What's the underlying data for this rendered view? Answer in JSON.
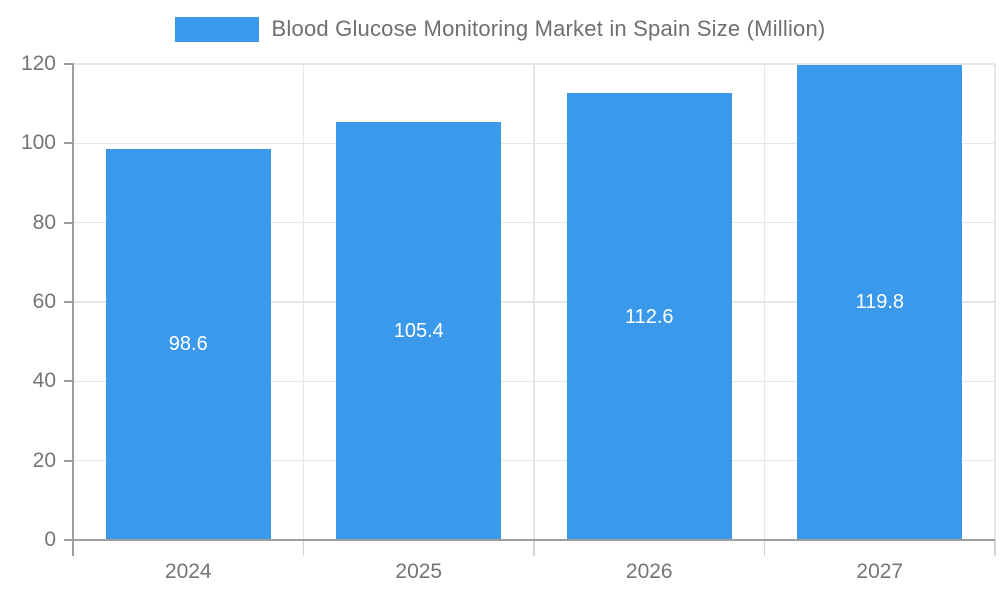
{
  "chart_data": {
    "type": "bar",
    "title": "Blood Glucose Monitoring Market in Spain Size (Million)",
    "series_name": "Blood Glucose Monitoring Market in Spain Size (Million)",
    "categories": [
      "2024",
      "2025",
      "2026",
      "2027"
    ],
    "values": [
      98.6,
      105.4,
      112.6,
      119.8
    ],
    "value_labels": [
      "98.6",
      "105.4",
      "112.6",
      "119.8"
    ],
    "xlabel": "",
    "ylabel": "",
    "ylim": [
      0,
      120
    ],
    "yticks": [
      0,
      20,
      40,
      60,
      80,
      100,
      120
    ],
    "grid": true,
    "legend_position": "top-center",
    "value_label_position": "inside-center",
    "colors": {
      "bar": "#3b99ec",
      "value_label_text": "#ffffff",
      "axis_text": "#757575",
      "legend_text": "#6f6f6f",
      "axis_line": "#9e9e9e",
      "gridline": "#e6e6e6",
      "boundary_tick": "#d4d4d4",
      "background": "#ffffff"
    }
  }
}
